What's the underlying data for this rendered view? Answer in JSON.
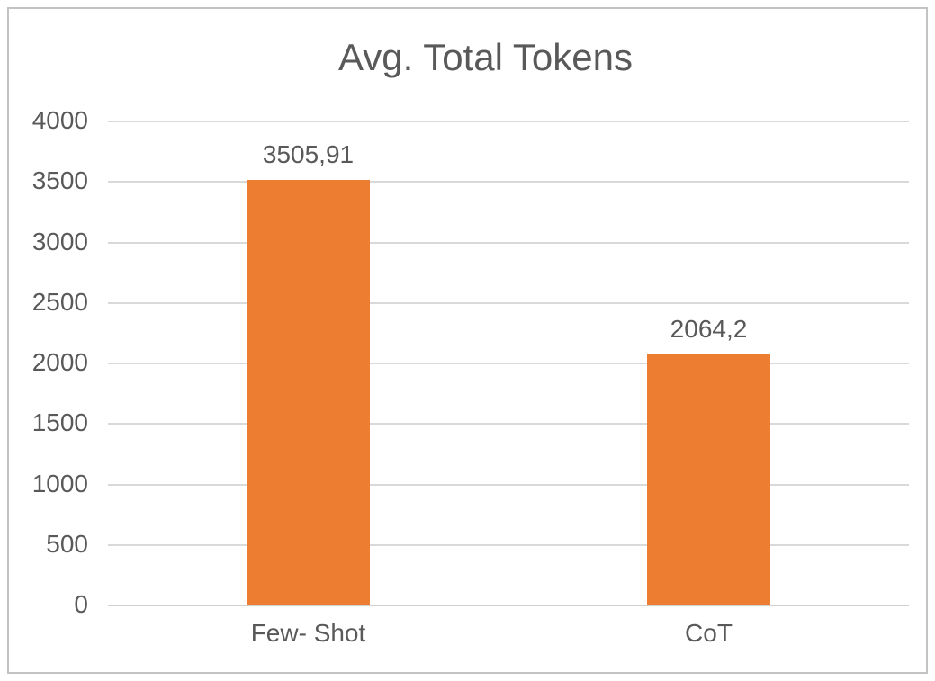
{
  "window": {
    "background": "#FFFFFF",
    "frame_border_color": "#C3C3C3"
  },
  "chart_data": {
    "type": "bar",
    "title": "Avg. Total Tokens",
    "categories": [
      "Few- Shot",
      "CoT"
    ],
    "values": [
      3505.91,
      2064.2
    ],
    "value_labels": [
      "3505,91",
      "2064,2"
    ],
    "xlabel": "",
    "ylabel": "",
    "ylim": [
      0,
      4000
    ],
    "ytick_values": [
      0,
      500,
      1000,
      1500,
      2000,
      2500,
      3000,
      3500,
      4000
    ],
    "yticks": [
      "0",
      "500",
      "1000",
      "1500",
      "2000",
      "2500",
      "3000",
      "3500",
      "4000"
    ],
    "grid": "horizontal",
    "legend": "none",
    "bar_color": "#ED7D31",
    "text_color": "#595959",
    "gridline_color": "#D9D9D9",
    "axis_line_color": "#D0D0D0"
  }
}
